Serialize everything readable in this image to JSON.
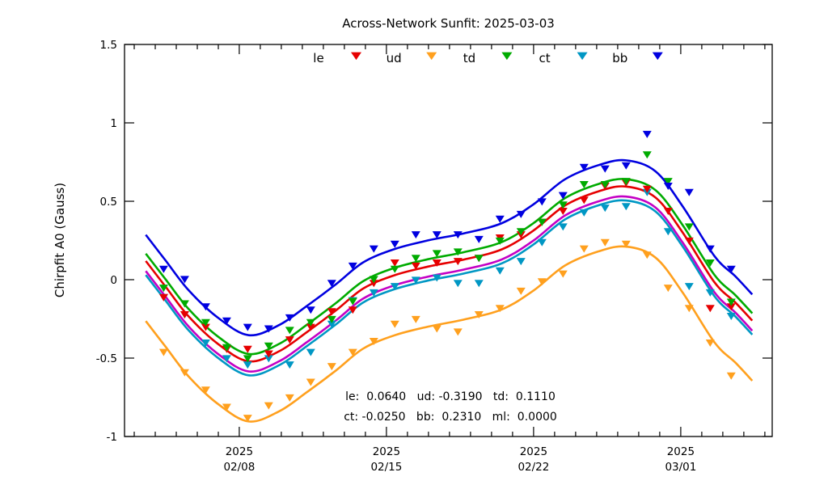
{
  "chart_data": {
    "type": "scatter",
    "title": "Across-Network Sunfit: 2025-03-03",
    "ylabel": "Chirpfit A0 (Gauss)",
    "xlabel": "",
    "ylim": [
      -1,
      1.5
    ],
    "x_range_days": [
      2.54,
      33.35
    ],
    "grid": false,
    "legend_position": "top-inside",
    "marker": "triangle-down",
    "yticks": [
      {
        "v": 1.5,
        "label": "1.5"
      },
      {
        "v": 1.0,
        "label": "1"
      },
      {
        "v": 0.5,
        "label": "0.5"
      },
      {
        "v": 0.0,
        "label": "0"
      },
      {
        "v": -0.5,
        "label": "-0.5"
      },
      {
        "v": -1.0,
        "label": "-1"
      }
    ],
    "xticks": [
      {
        "day": 8,
        "year": "2025",
        "date": "02/08"
      },
      {
        "day": 15,
        "year": "2025",
        "date": "02/15"
      },
      {
        "day": 22,
        "year": "2025",
        "date": "02/22"
      },
      {
        "day": 29,
        "year": "2025",
        "date": "03/01"
      }
    ],
    "annotation_lines": [
      "le:  0.0640   ud: -0.3190   td:  0.1110",
      "ct: -0.0250   bb:  0.2310   ml:  0.0000"
    ],
    "fit_offsets": {
      "le": 0.064,
      "ud": -0.319,
      "td": 0.111,
      "ct": -0.025,
      "bb": 0.231,
      "ml": 0.0
    },
    "base_curve_day_value": [
      [
        3.55,
        0.055
      ],
      [
        4.5,
        -0.11
      ],
      [
        5.6,
        -0.3
      ],
      [
        7.0,
        -0.475
      ],
      [
        8.45,
        -0.585
      ],
      [
        9.9,
        -0.52
      ],
      [
        11.2,
        -0.4
      ],
      [
        12.6,
        -0.26
      ],
      [
        13.9,
        -0.12
      ],
      [
        15.4,
        -0.035
      ],
      [
        17.0,
        0.02
      ],
      [
        18.7,
        0.065
      ],
      [
        20.5,
        0.13
      ],
      [
        22.0,
        0.25
      ],
      [
        23.5,
        0.41
      ],
      [
        25.1,
        0.5
      ],
      [
        26.4,
        0.53
      ],
      [
        27.8,
        0.46
      ],
      [
        29.1,
        0.235
      ],
      [
        30.6,
        -0.08
      ],
      [
        31.6,
        -0.21
      ],
      [
        32.4,
        -0.325
      ]
    ],
    "series": [
      {
        "name": "le",
        "color": "#e60000",
        "offset": 0.064,
        "in_legend": true,
        "points": [
          [
            4.4,
            -0.12
          ],
          [
            5.4,
            -0.23
          ],
          [
            6.4,
            -0.31
          ],
          [
            7.4,
            -0.45
          ],
          [
            8.4,
            -0.45
          ],
          [
            9.4,
            -0.48
          ],
          [
            10.4,
            -0.39
          ],
          [
            11.4,
            -0.31
          ],
          [
            12.4,
            -0.21
          ],
          [
            13.4,
            -0.2
          ],
          [
            14.4,
            -0.03
          ],
          [
            15.4,
            0.1
          ],
          [
            16.4,
            0.08
          ],
          [
            17.4,
            0.1
          ],
          [
            18.4,
            0.11
          ],
          [
            19.4,
            0.13
          ],
          [
            20.4,
            0.26
          ],
          [
            21.4,
            0.28
          ],
          [
            22.4,
            0.36
          ],
          [
            23.4,
            0.43
          ],
          [
            24.4,
            0.5
          ],
          [
            25.4,
            0.59
          ],
          [
            26.4,
            0.61
          ],
          [
            27.4,
            0.57
          ],
          [
            28.4,
            0.43
          ],
          [
            29.4,
            0.24
          ],
          [
            30.4,
            -0.19
          ],
          [
            31.4,
            -0.18
          ]
        ]
      },
      {
        "name": "ud",
        "color": "#ffa01e",
        "offset": -0.319,
        "in_legend": true,
        "points": [
          [
            4.4,
            -0.47
          ],
          [
            5.4,
            -0.6
          ],
          [
            6.4,
            -0.71
          ],
          [
            7.4,
            -0.82
          ],
          [
            8.4,
            -0.89
          ],
          [
            9.4,
            -0.81
          ],
          [
            10.4,
            -0.76
          ],
          [
            11.4,
            -0.66
          ],
          [
            12.4,
            -0.56
          ],
          [
            13.4,
            -0.47
          ],
          [
            14.4,
            -0.4
          ],
          [
            15.4,
            -0.29
          ],
          [
            16.4,
            -0.26
          ],
          [
            17.4,
            -0.32
          ],
          [
            18.4,
            -0.34
          ],
          [
            19.4,
            -0.23
          ],
          [
            20.4,
            -0.19
          ],
          [
            21.4,
            -0.08
          ],
          [
            22.4,
            -0.02
          ],
          [
            23.4,
            0.03
          ],
          [
            24.4,
            0.19
          ],
          [
            25.4,
            0.23
          ],
          [
            26.4,
            0.22
          ],
          [
            27.4,
            0.15
          ],
          [
            28.4,
            -0.06
          ],
          [
            29.4,
            -0.19
          ],
          [
            30.4,
            -0.41
          ],
          [
            31.4,
            -0.62
          ]
        ]
      },
      {
        "name": "td",
        "color": "#00ab00",
        "offset": 0.111,
        "in_legend": true,
        "points": [
          [
            4.4,
            -0.06
          ],
          [
            5.4,
            -0.16
          ],
          [
            6.4,
            -0.28
          ],
          [
            7.4,
            -0.44
          ],
          [
            8.4,
            -0.51
          ],
          [
            9.4,
            -0.43
          ],
          [
            10.4,
            -0.33
          ],
          [
            11.4,
            -0.28
          ],
          [
            12.4,
            -0.26
          ],
          [
            13.4,
            -0.145
          ],
          [
            14.4,
            -0.005
          ],
          [
            15.4,
            0.06
          ],
          [
            16.4,
            0.13
          ],
          [
            17.4,
            0.16
          ],
          [
            18.4,
            0.17
          ],
          [
            19.4,
            0.13
          ],
          [
            20.4,
            0.24
          ],
          [
            21.4,
            0.3
          ],
          [
            22.4,
            0.36
          ],
          [
            23.4,
            0.47
          ],
          [
            24.4,
            0.6
          ],
          [
            25.4,
            0.6
          ],
          [
            26.4,
            0.62
          ],
          [
            27.4,
            0.79
          ],
          [
            28.4,
            0.62
          ],
          [
            29.4,
            0.33
          ],
          [
            30.4,
            0.1
          ],
          [
            31.4,
            -0.15
          ]
        ]
      },
      {
        "name": "ct",
        "color": "#0097c4",
        "offset": -0.025,
        "in_legend": true,
        "points": [
          [
            4.4,
            -0.12
          ],
          [
            5.4,
            -0.23
          ],
          [
            6.4,
            -0.41
          ],
          [
            7.4,
            -0.51
          ],
          [
            8.4,
            -0.55
          ],
          [
            9.4,
            -0.51
          ],
          [
            10.4,
            -0.55
          ],
          [
            11.4,
            -0.47
          ],
          [
            12.4,
            -0.29
          ],
          [
            13.4,
            -0.14
          ],
          [
            14.4,
            -0.09
          ],
          [
            15.4,
            -0.05
          ],
          [
            16.4,
            -0.01
          ],
          [
            17.4,
            0.005
          ],
          [
            18.4,
            -0.03
          ],
          [
            19.4,
            -0.03
          ],
          [
            20.4,
            0.05
          ],
          [
            21.4,
            0.11
          ],
          [
            22.4,
            0.23
          ],
          [
            23.4,
            0.33
          ],
          [
            24.4,
            0.42
          ],
          [
            25.4,
            0.45
          ],
          [
            26.4,
            0.46
          ],
          [
            27.4,
            0.55
          ],
          [
            28.4,
            0.3
          ],
          [
            29.4,
            -0.05
          ],
          [
            30.4,
            -0.09
          ],
          [
            31.4,
            -0.24
          ]
        ]
      },
      {
        "name": "bb",
        "color": "#0000e0",
        "offset": 0.231,
        "in_legend": true,
        "points": [
          [
            4.4,
            0.06
          ],
          [
            5.4,
            -0.005
          ],
          [
            6.4,
            -0.18
          ],
          [
            7.4,
            -0.27
          ],
          [
            8.4,
            -0.31
          ],
          [
            9.4,
            -0.32
          ],
          [
            10.4,
            -0.25
          ],
          [
            11.4,
            -0.2
          ],
          [
            12.4,
            -0.03
          ],
          [
            13.4,
            0.08
          ],
          [
            14.4,
            0.19
          ],
          [
            15.4,
            0.22
          ],
          [
            16.4,
            0.28
          ],
          [
            17.4,
            0.28
          ],
          [
            18.4,
            0.28
          ],
          [
            19.4,
            0.25
          ],
          [
            20.4,
            0.38
          ],
          [
            21.4,
            0.41
          ],
          [
            22.4,
            0.49
          ],
          [
            23.4,
            0.53
          ],
          [
            24.4,
            0.71
          ],
          [
            25.4,
            0.7
          ],
          [
            26.4,
            0.72
          ],
          [
            27.4,
            0.92
          ],
          [
            28.4,
            0.59
          ],
          [
            29.4,
            0.55
          ],
          [
            30.4,
            0.19
          ],
          [
            31.4,
            0.06
          ]
        ]
      },
      {
        "name": "ml",
        "color": "#c400c4",
        "offset": 0.0,
        "in_legend": false,
        "points": []
      }
    ]
  }
}
